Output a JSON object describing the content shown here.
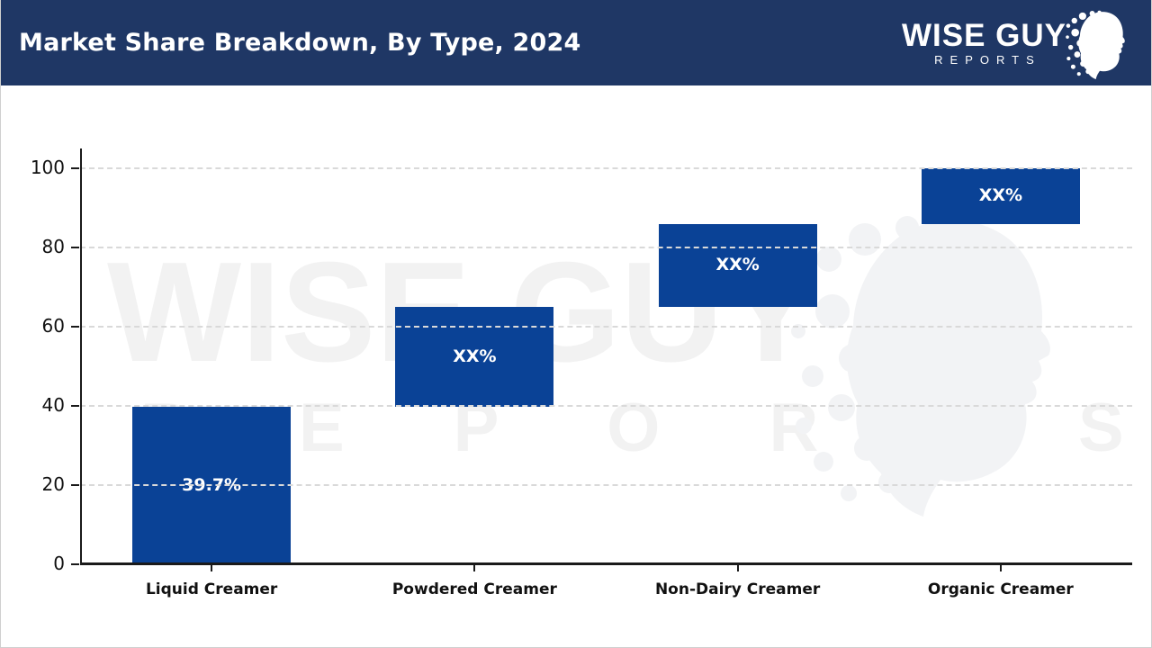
{
  "header": {
    "title": "Market Share Breakdown, By Type, 2024",
    "bg_color": "#1F3765",
    "logo": {
      "line1": "WISE GUY",
      "line2": "REPORTS"
    }
  },
  "watermark": {
    "line1": "WISE GUY",
    "line2": "R E P O R T S",
    "color": "#f2f2f2",
    "head_color": "#f2f3f5"
  },
  "chart_data": {
    "type": "bar",
    "subtype": "floating-stacked-waterfall",
    "title": "Market Share Breakdown, By Type, 2024",
    "categories": [
      "Liquid Creamer",
      "Powdered Creamer",
      "Non-Dairy Creamer",
      "Organic Creamer"
    ],
    "segments": [
      {
        "category": "Liquid Creamer",
        "start": 0,
        "end": 39.7,
        "value": 39.7,
        "label": "39.7%"
      },
      {
        "category": "Powdered Creamer",
        "start": 39.7,
        "end": 65,
        "value": 25.3,
        "label": "XX%"
      },
      {
        "category": "Non-Dairy Creamer",
        "start": 65,
        "end": 86,
        "value": 21,
        "label": "XX%"
      },
      {
        "category": "Organic Creamer",
        "start": 86,
        "end": 100,
        "value": 14,
        "label": "XX%"
      }
    ],
    "ylabel": "",
    "xlabel": "",
    "yticks": [
      0,
      20,
      40,
      60,
      80,
      100
    ],
    "ylim": [
      0,
      105
    ],
    "grid": "horizontal-dashed-above-bars",
    "legend": "none",
    "bar_color": "#0A4296",
    "bar_label_color": "#ffffff",
    "grid_color": "#d9d9d9",
    "axis_color": "#1a1a1a"
  }
}
